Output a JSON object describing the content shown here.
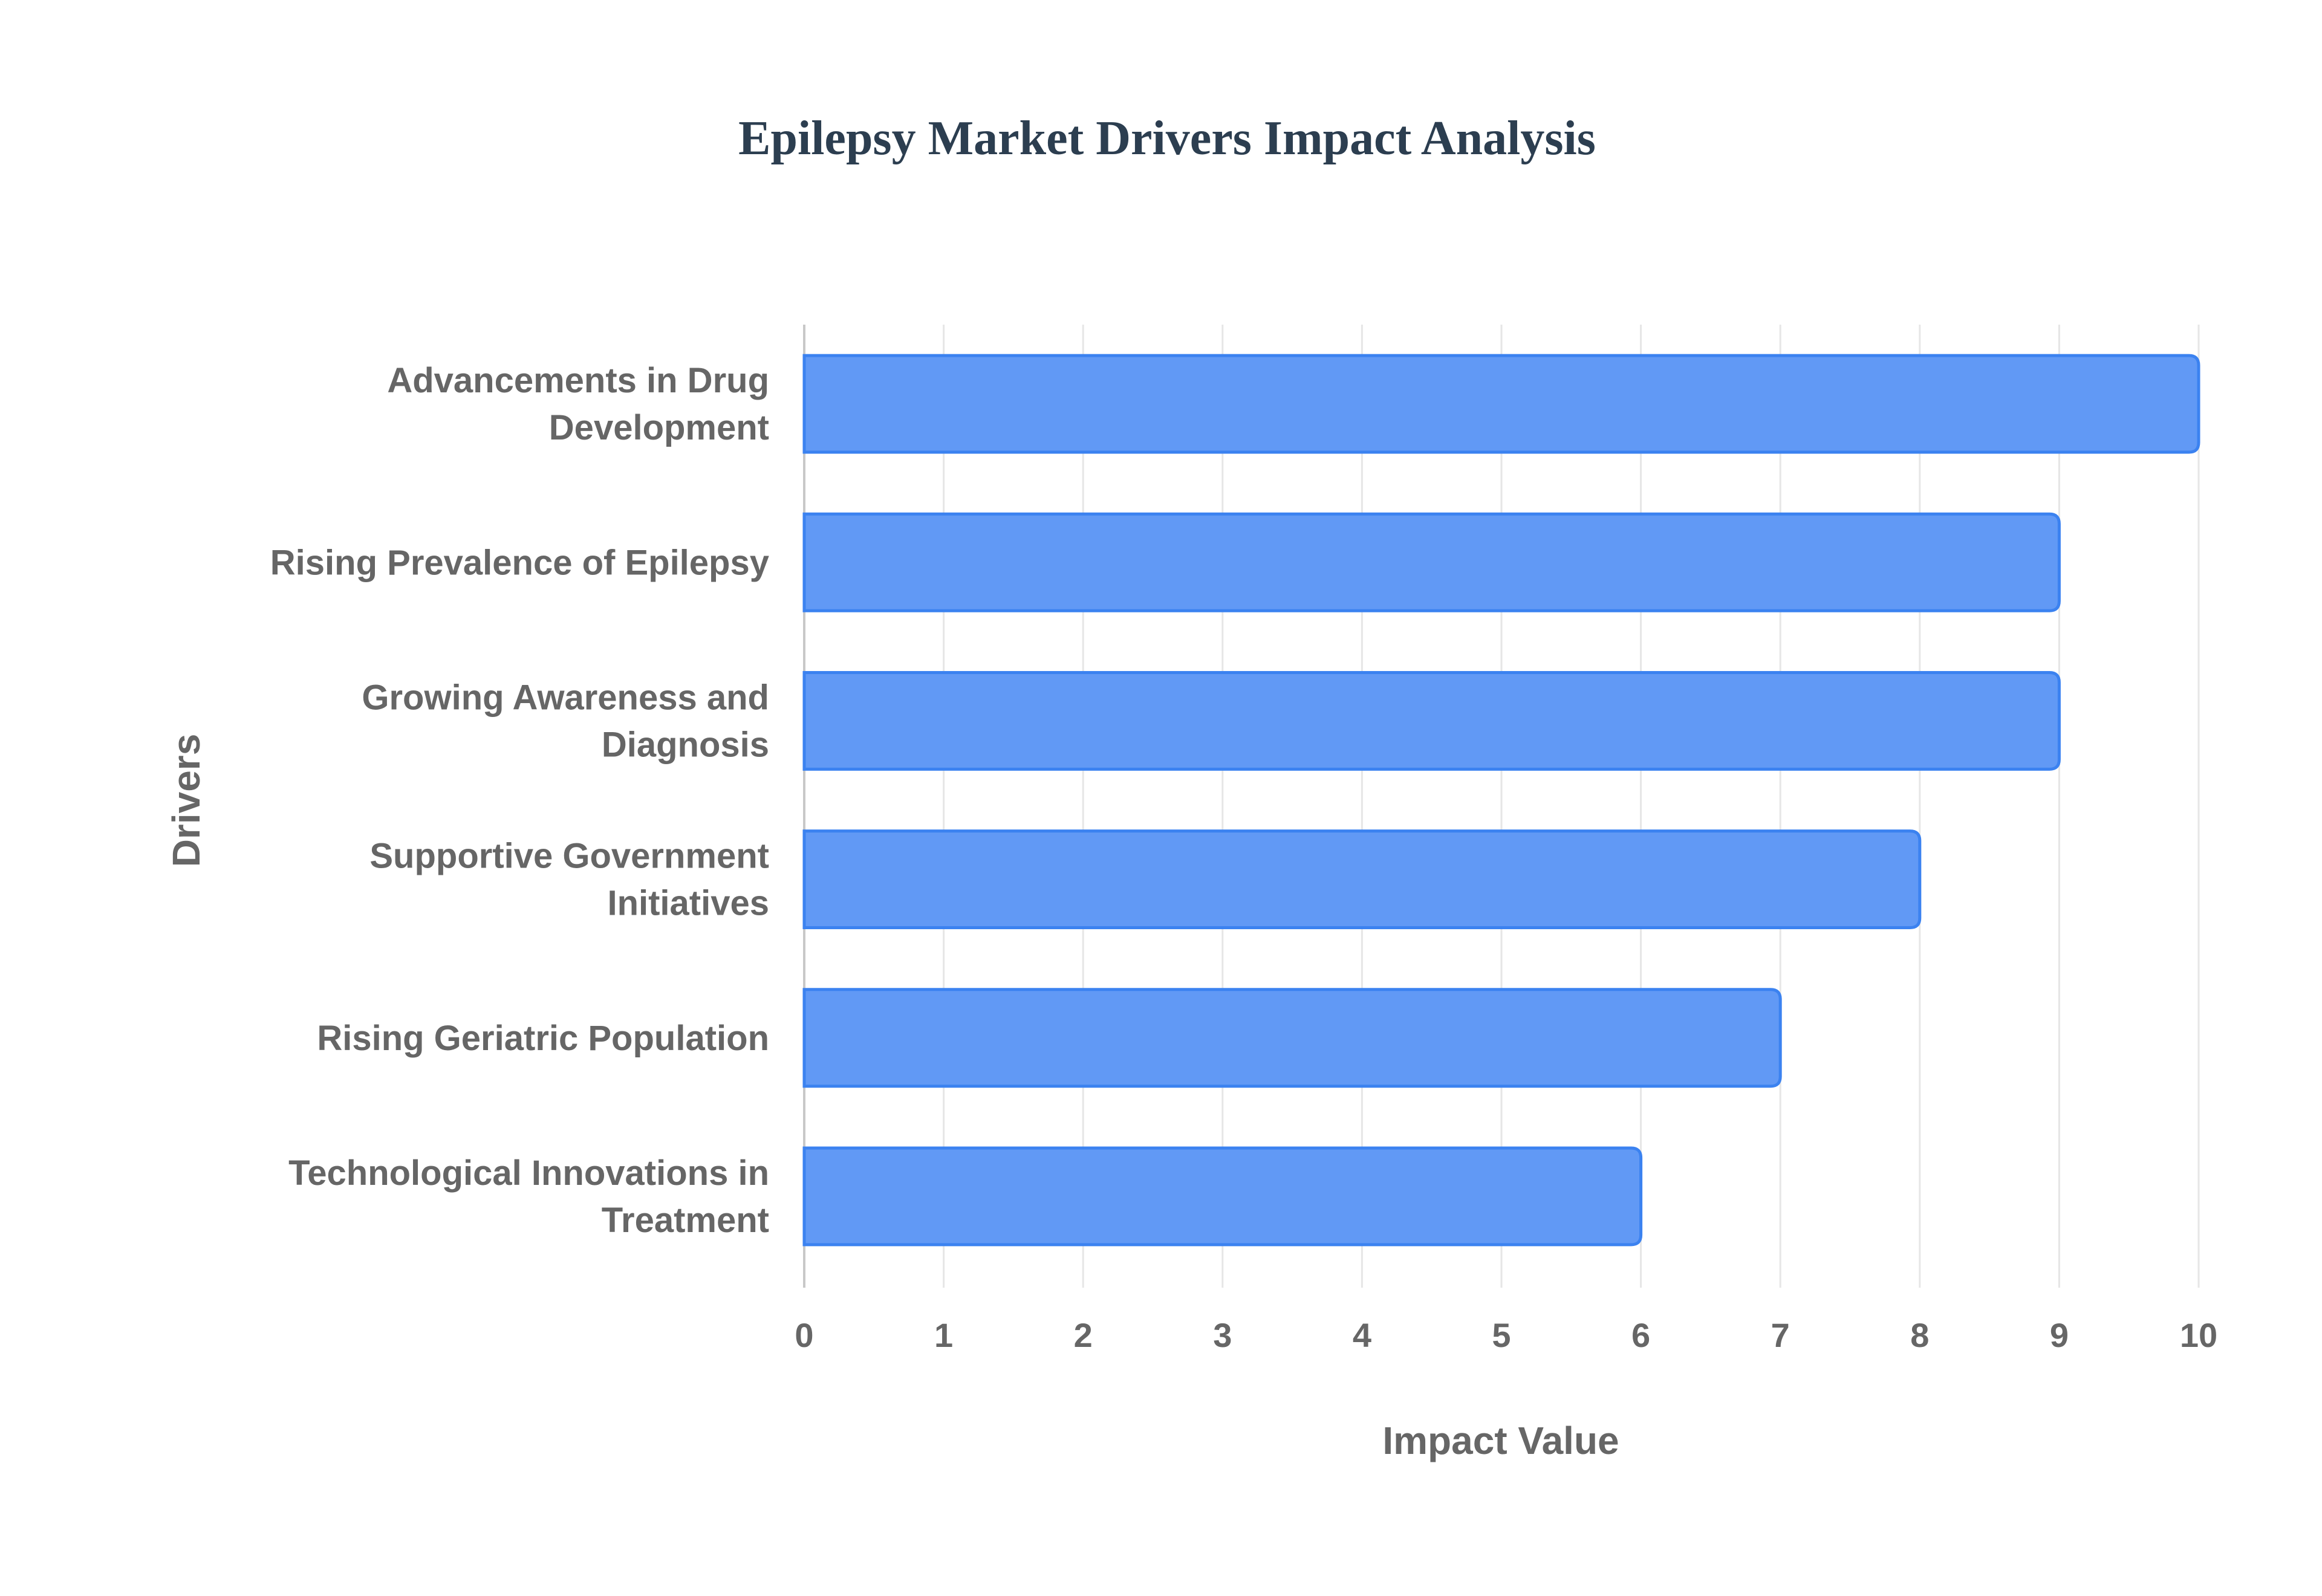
{
  "chart_data": {
    "type": "bar",
    "orientation": "horizontal",
    "title": "Epilepsy Market Drivers Impact Analysis",
    "xlabel": "Impact Value",
    "ylabel": "Drivers",
    "categories": [
      [
        "Advancements in Drug",
        "Development"
      ],
      [
        "Rising Prevalence of Epilepsy"
      ],
      [
        "Growing Awareness and",
        "Diagnosis"
      ],
      [
        "Supportive Government",
        "Initiatives"
      ],
      [
        "Rising Geriatric Population"
      ],
      [
        "Technological Innovations in",
        "Treatment"
      ]
    ],
    "values": [
      10,
      9,
      9,
      8,
      7,
      6
    ],
    "xlim": [
      0,
      10
    ],
    "xticks": [
      "0",
      "1",
      "2",
      "3",
      "4",
      "5",
      "6",
      "7",
      "8",
      "9",
      "10"
    ],
    "grid": true,
    "colors": {
      "bar_fill": "#6199f5",
      "bar_stroke": "#3b82f0",
      "title": "#2c3e50",
      "text": "#666666"
    }
  }
}
